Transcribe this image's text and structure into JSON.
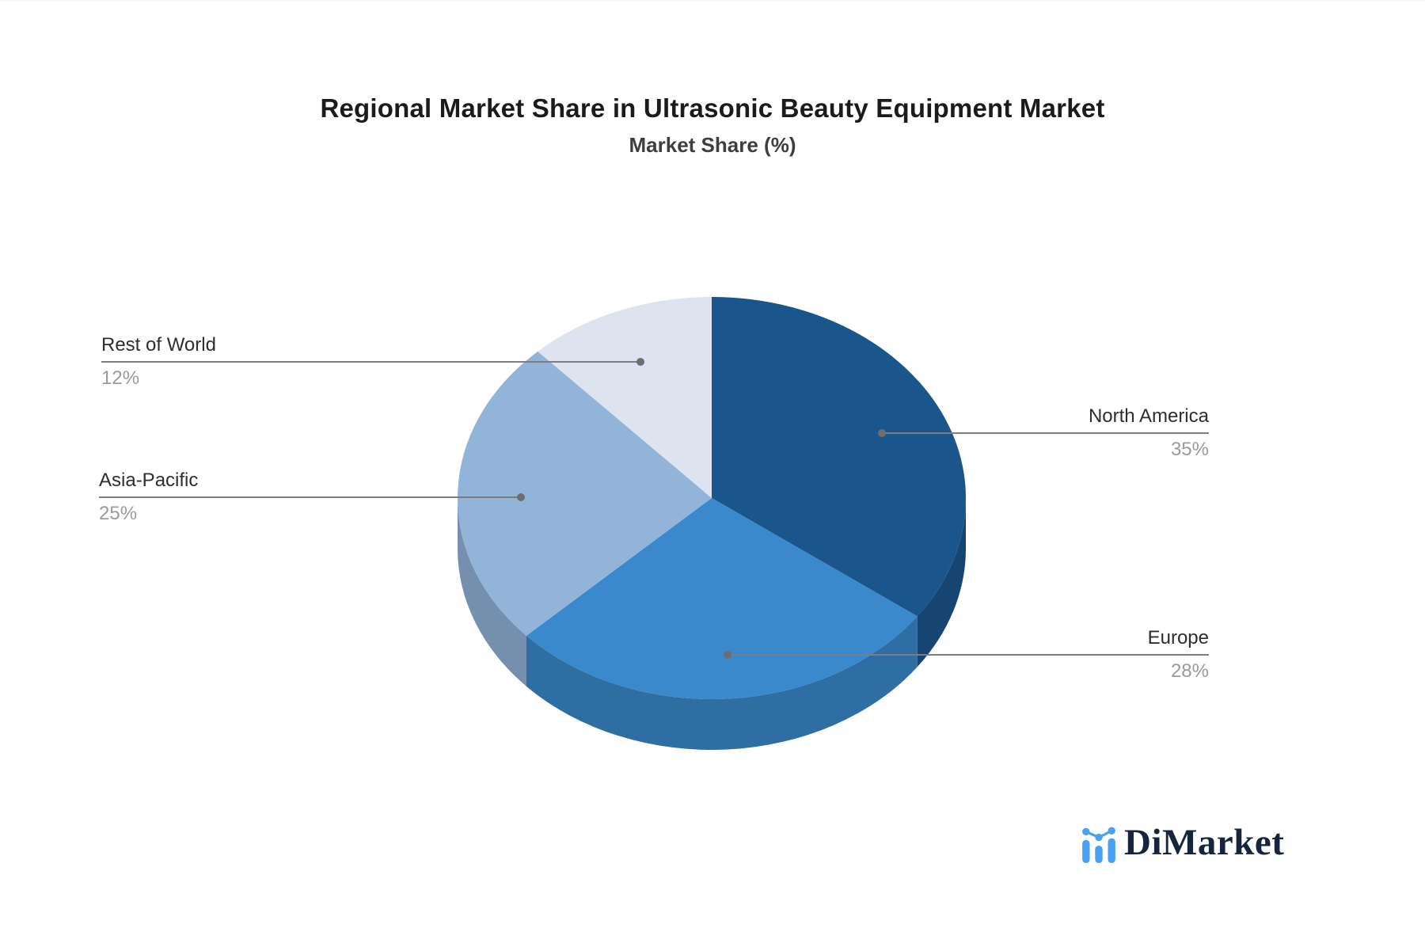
{
  "title": "Regional Market Share in Ultrasonic Beauty Equipment Market",
  "subtitle": "Market Share (%)",
  "brand": {
    "name": "DiMarket",
    "icon": "bar-line-chart-logo-icon",
    "icon_color": "#4aa1f3",
    "text_color": "#16243e"
  },
  "chart_data": {
    "type": "pie",
    "is_3d": true,
    "title": "Regional Market Share in Ultrasonic Beauty Equipment Market",
    "subtitle": "Market Share (%)",
    "unit": "%",
    "start_angle": "12 o'clock",
    "direction": "clockwise",
    "legend_position": "callout-labels",
    "leader_line_color": "#7d7d7d",
    "label_name_color": "#2c2e31",
    "label_value_color": "#9a9a9a",
    "slices": [
      {
        "label": "North America",
        "value": 35,
        "display": "35%",
        "color": "#1a568c",
        "label_side": "right"
      },
      {
        "label": "Europe",
        "value": 28,
        "display": "28%",
        "color": "#3a89cc",
        "label_side": "right"
      },
      {
        "label": "Asia-Pacific",
        "value": 25,
        "display": "25%",
        "color": "#92b4d9",
        "label_side": "left"
      },
      {
        "label": "Rest of World",
        "value": 12,
        "display": "12%",
        "color": "#dde4ef",
        "label_side": "left"
      }
    ]
  }
}
